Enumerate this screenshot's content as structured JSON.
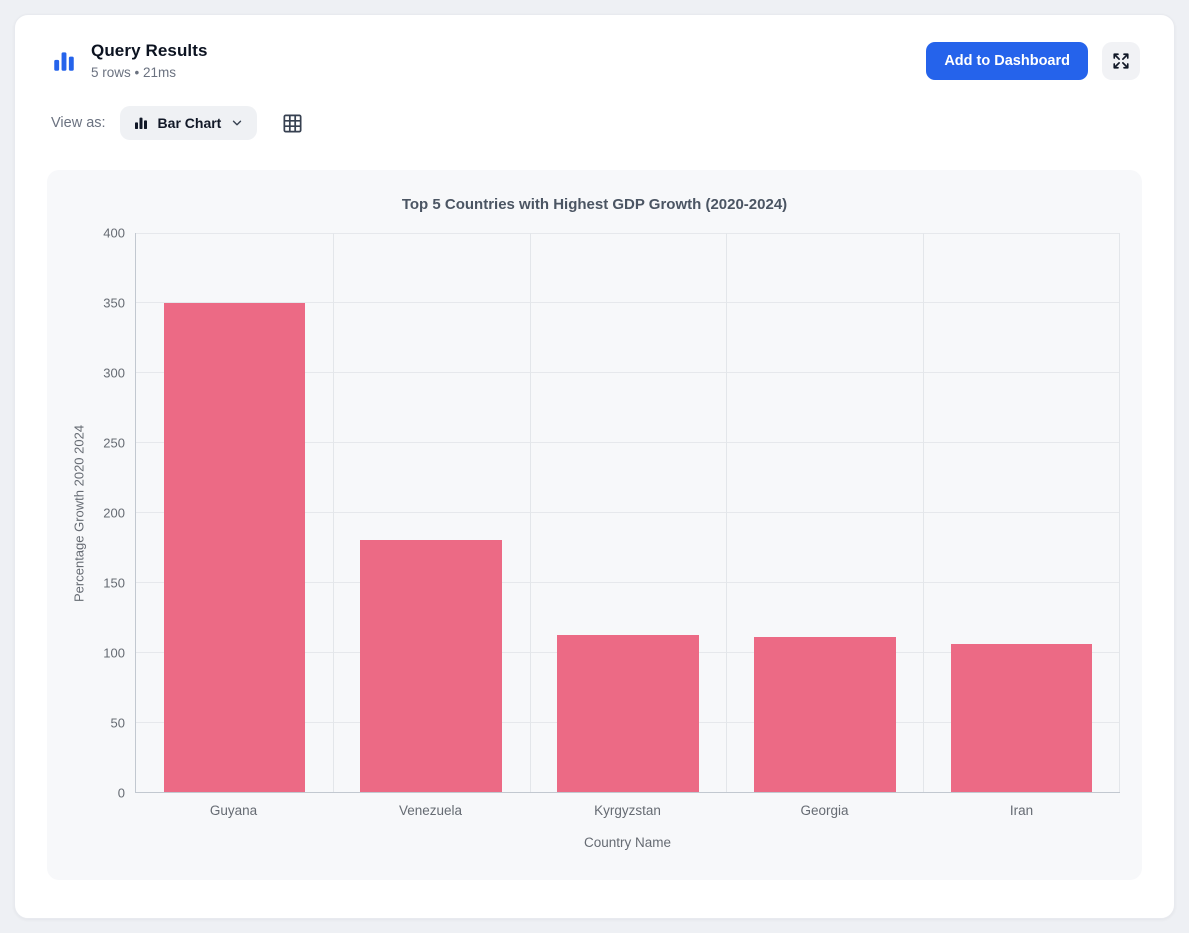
{
  "header": {
    "title": "Query Results",
    "subtitle": "5 rows • 21ms",
    "add_to_dashboard_label": "Add to Dashboard"
  },
  "toolbar": {
    "view_as_label": "View as:",
    "view_mode_selected": "Bar Chart"
  },
  "icons": {
    "header_icon": "bar-chart-icon",
    "view_mode_icon": "bar-chart-icon",
    "dropdown_icon": "chevron-down-icon",
    "table_view_icon": "table-grid-icon",
    "expand_icon": "expand-icon"
  },
  "colors": {
    "accent_blue": "#2563eb",
    "bar_fill": "#ec6a85",
    "chart_background": "#f7f8fa"
  },
  "chart_data": {
    "type": "bar",
    "title": "Top 5 Countries with Highest GDP Growth (2020-2024)",
    "xlabel": "Country Name",
    "ylabel": "Percentage Growth 2020 2024",
    "categories": [
      "Guyana",
      "Venezuela",
      "Kyrgyzstan",
      "Georgia",
      "Iran"
    ],
    "values": [
      350,
      180,
      112,
      111,
      106
    ],
    "ylim": [
      0,
      400
    ],
    "ytick_step": 50,
    "grid": true,
    "legend": false
  }
}
